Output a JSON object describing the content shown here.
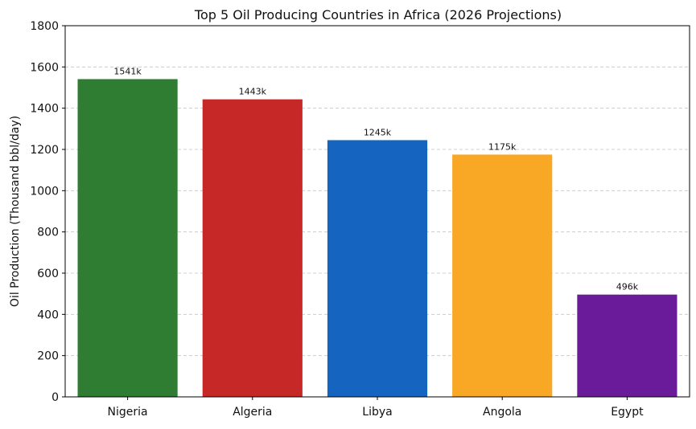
{
  "chart_data": {
    "type": "bar",
    "title": "Top 5 Oil Producing Countries in Africa (2026 Projections)",
    "xlabel": "",
    "ylabel": "Oil Production (Thousand bbl/day)",
    "categories": [
      "Nigeria",
      "Algeria",
      "Libya",
      "Angola",
      "Egypt"
    ],
    "values": [
      1541,
      1443,
      1245,
      1175,
      496
    ],
    "data_labels": [
      "1541k",
      "1443k",
      "1245k",
      "1175k",
      "496k"
    ],
    "colors": [
      "#2e7d32",
      "#c62828",
      "#1565c0",
      "#f9a825",
      "#6a1b9a"
    ],
    "ylim": [
      0,
      1800
    ],
    "yticks": [
      0,
      200,
      400,
      600,
      800,
      1000,
      1200,
      1400,
      1600,
      1800
    ],
    "grid": true,
    "grid_axis": "y",
    "grid_style": "dashed",
    "legend": "none"
  }
}
